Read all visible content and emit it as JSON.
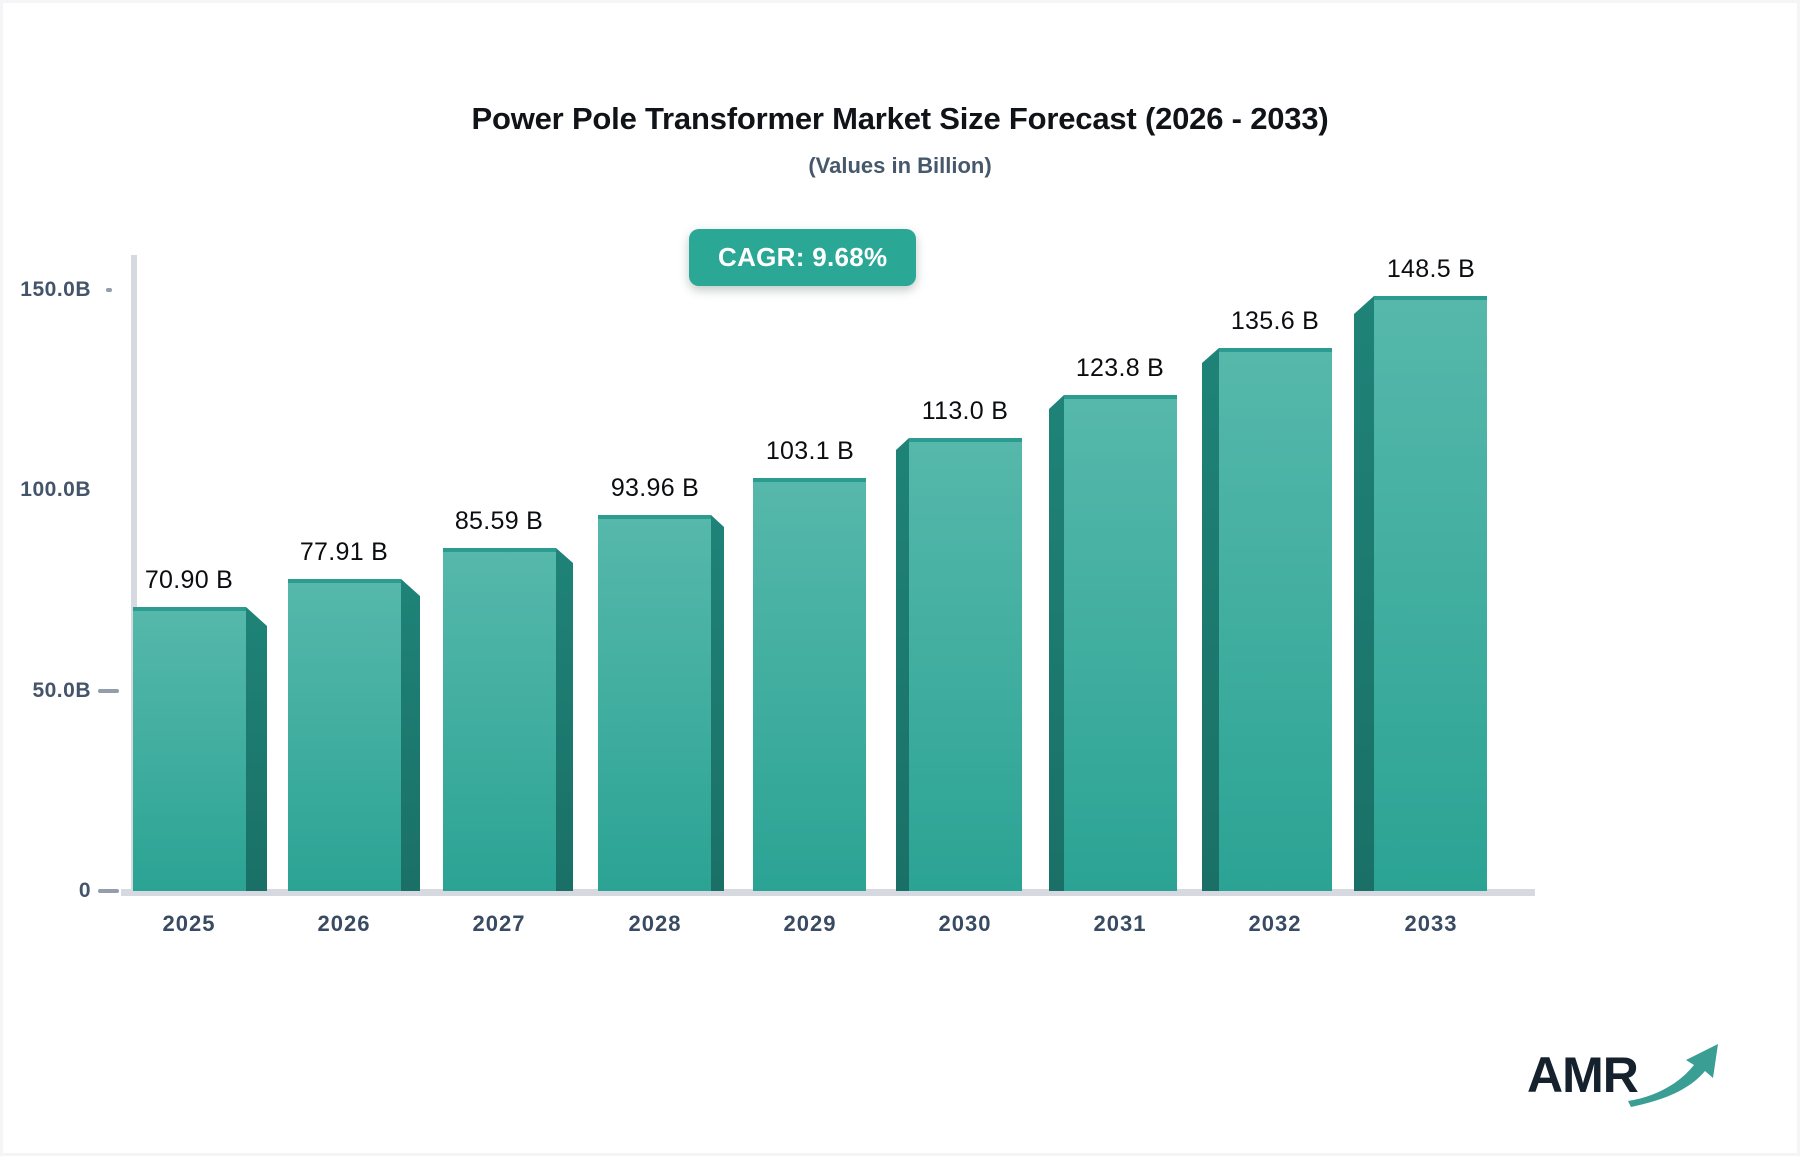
{
  "header": {
    "title": "Power Pole Transformer Market Size Forecast (2026 - 2033)",
    "subtitle": "(Values in Billion)",
    "cagr_badge": "CAGR: 9.68%"
  },
  "chart_data": {
    "type": "bar",
    "title": "Power Pole Transformer Market Size Forecast (2026 - 2033)",
    "subtitle": "(Values in Billion)",
    "unit": "Billion",
    "cagr": "9.68%",
    "categories": [
      "2025",
      "2026",
      "2027",
      "2028",
      "2029",
      "2030",
      "2031",
      "2032",
      "2033"
    ],
    "values": [
      70.9,
      77.91,
      85.59,
      93.96,
      103.1,
      113.0,
      123.8,
      135.6,
      148.5
    ],
    "display_values": [
      "70.90 B",
      "77.91 B",
      "85.59 B",
      "93.96 B",
      "103.1 B",
      "113.0 B",
      "123.8 B",
      "135.6 B",
      "148.5 B"
    ],
    "ylim": [
      0,
      150
    ],
    "y_ticks": [
      {
        "value": 150,
        "label": "150.0B"
      },
      {
        "value": 100,
        "label": "100.0B"
      },
      {
        "value": 50,
        "label": "50.0B"
      },
      {
        "value": 0,
        "label": "0"
      }
    ],
    "grid": false,
    "legend": false,
    "colors": {
      "bar_top": "#56b8ab",
      "bar_bottom": "#2ba394",
      "bar_side": "#1e8076",
      "badge_bg": "#2aa795",
      "axis_line": "#d6dae0",
      "value_label": "#0b0d10",
      "axis_label": "#44546b",
      "year_label": "#394b63"
    }
  },
  "logo": {
    "text": "AMR"
  }
}
